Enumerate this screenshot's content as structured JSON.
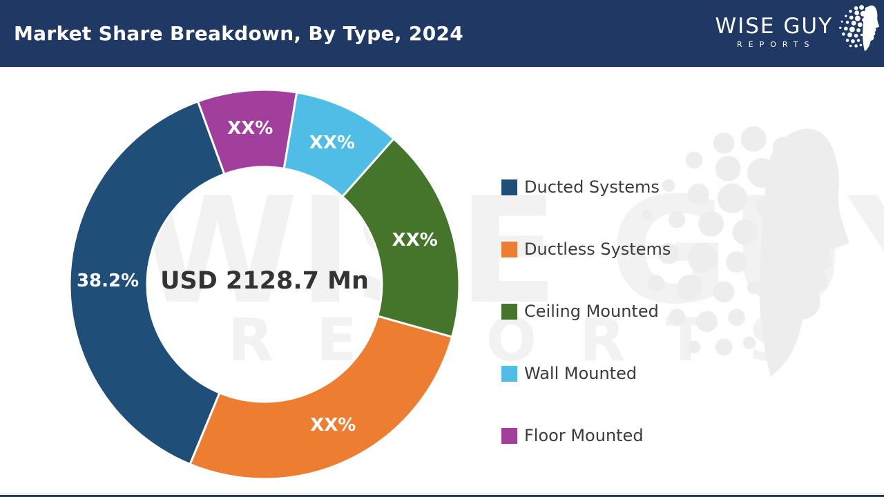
{
  "header": {
    "title": "Market Share Breakdown, By Type, 2024",
    "logo": {
      "line1": "WISE GUY",
      "line2": "REPORTS"
    }
  },
  "watermark": {
    "line1": "WISE GUY",
    "line2": "REPORTS"
  },
  "colors": {
    "header_bg": "#1F3864",
    "footer_bar": "#1F3864",
    "center_label_text": "#333333",
    "legend_text": "#3B3B3B",
    "segment_label_text": "#FFFFFF",
    "watermark": "#F2F2F2"
  },
  "chart_data": {
    "type": "donut",
    "title": "Market Share Breakdown, By Type, 2024",
    "center_label": "USD 2128.7 Mn",
    "values_masked": true,
    "legend_position": "right",
    "start_angle_deg": 110,
    "direction": "counterclockwise",
    "segments": [
      {
        "name": "Ducted Systems",
        "display_label": "38.2%",
        "percent_est": 38.2,
        "color": "#1F4E79"
      },
      {
        "name": "Ductless Systems",
        "display_label": "XX%",
        "percent_est": 26.9,
        "color": "#ED7D31"
      },
      {
        "name": "Ceiling Mounted",
        "display_label": "XX%",
        "percent_est": 17.8,
        "color": "#44752A"
      },
      {
        "name": "Wall Mounted",
        "display_label": "XX%",
        "percent_est": 8.9,
        "color": "#4FBDE5"
      },
      {
        "name": "Floor Mounted",
        "display_label": "XX%",
        "percent_est": 8.2,
        "color": "#A23F9C"
      }
    ]
  }
}
